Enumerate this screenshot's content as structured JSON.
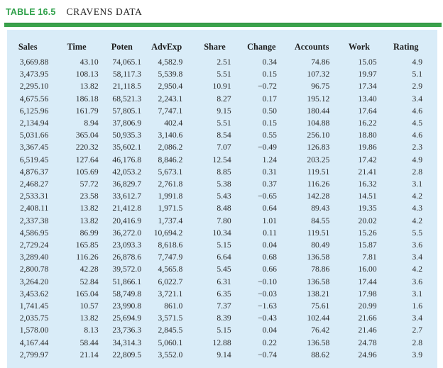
{
  "header": {
    "table_number": "TABLE 16.5",
    "table_name": "CRAVENS DATA"
  },
  "colors": {
    "accent_green": "#3aa24b",
    "title_green": "#2fa04a",
    "panel_blue": "#d9ecf8",
    "text": "#232323"
  },
  "table": {
    "columns": [
      "Sales",
      "Time",
      "Poten",
      "AdvExp",
      "Share",
      "Change",
      "Accounts",
      "Work",
      "Rating"
    ],
    "rows": [
      [
        "3,669.88",
        "43.10",
        "74,065.1",
        "4,582.9",
        "2.51",
        "0.34",
        "74.86",
        "15.05",
        "4.9"
      ],
      [
        "3,473.95",
        "108.13",
        "58,117.3",
        "5,539.8",
        "5.51",
        "0.15",
        "107.32",
        "19.97",
        "5.1"
      ],
      [
        "2,295.10",
        "13.82",
        "21,118.5",
        "2,950.4",
        "10.91",
        "−0.72",
        "96.75",
        "17.34",
        "2.9"
      ],
      [
        "4,675.56",
        "186.18",
        "68,521.3",
        "2,243.1",
        "8.27",
        "0.17",
        "195.12",
        "13.40",
        "3.4"
      ],
      [
        "6,125.96",
        "161.79",
        "57,805.1",
        "7,747.1",
        "9.15",
        "0.50",
        "180.44",
        "17.64",
        "4.6"
      ],
      [
        "2,134.94",
        "8.94",
        "37,806.9",
        "402.4",
        "5.51",
        "0.15",
        "104.88",
        "16.22",
        "4.5"
      ],
      [
        "5,031.66",
        "365.04",
        "50,935.3",
        "3,140.6",
        "8.54",
        "0.55",
        "256.10",
        "18.80",
        "4.6"
      ],
      [
        "3,367.45",
        "220.32",
        "35,602.1",
        "2,086.2",
        "7.07",
        "−0.49",
        "126.83",
        "19.86",
        "2.3"
      ],
      [
        "6,519.45",
        "127.64",
        "46,176.8",
        "8,846.2",
        "12.54",
        "1.24",
        "203.25",
        "17.42",
        "4.9"
      ],
      [
        "4,876.37",
        "105.69",
        "42,053.2",
        "5,673.1",
        "8.85",
        "0.31",
        "119.51",
        "21.41",
        "2.8"
      ],
      [
        "2,468.27",
        "57.72",
        "36,829.7",
        "2,761.8",
        "5.38",
        "0.37",
        "116.26",
        "16.32",
        "3.1"
      ],
      [
        "2,533.31",
        "23.58",
        "33,612.7",
        "1,991.8",
        "5.43",
        "−0.65",
        "142.28",
        "14.51",
        "4.2"
      ],
      [
        "2,408.11",
        "13.82",
        "21,412.8",
        "1,971.5",
        "8.48",
        "0.64",
        "89.43",
        "19.35",
        "4.3"
      ],
      [
        "2,337.38",
        "13.82",
        "20,416.9",
        "1,737.4",
        "7.80",
        "1.01",
        "84.55",
        "20.02",
        "4.2"
      ],
      [
        "4,586.95",
        "86.99",
        "36,272.0",
        "10,694.2",
        "10.34",
        "0.11",
        "119.51",
        "15.26",
        "5.5"
      ],
      [
        "2,729.24",
        "165.85",
        "23,093.3",
        "8,618.6",
        "5.15",
        "0.04",
        "80.49",
        "15.87",
        "3.6"
      ],
      [
        "3,289.40",
        "116.26",
        "26,878.6",
        "7,747.9",
        "6.64",
        "0.68",
        "136.58",
        "7.81",
        "3.4"
      ],
      [
        "2,800.78",
        "42.28",
        "39,572.0",
        "4,565.8",
        "5.45",
        "0.66",
        "78.86",
        "16.00",
        "4.2"
      ],
      [
        "3,264.20",
        "52.84",
        "51,866.1",
        "6,022.7",
        "6.31",
        "−0.10",
        "136.58",
        "17.44",
        "3.6"
      ],
      [
        "3,453.62",
        "165.04",
        "58,749.8",
        "3,721.1",
        "6.35",
        "−0.03",
        "138.21",
        "17.98",
        "3.1"
      ],
      [
        "1,741.45",
        "10.57",
        "23,990.8",
        "861.0",
        "7.37",
        "−1.63",
        "75.61",
        "20.99",
        "1.6"
      ],
      [
        "2,035.75",
        "13.82",
        "25,694.9",
        "3,571.5",
        "8.39",
        "−0.43",
        "102.44",
        "21.66",
        "3.4"
      ],
      [
        "1,578.00",
        "8.13",
        "23,736.3",
        "2,845.5",
        "5.15",
        "0.04",
        "76.42",
        "21.46",
        "2.7"
      ],
      [
        "4,167.44",
        "58.44",
        "34,314.3",
        "5,060.1",
        "12.88",
        "0.22",
        "136.58",
        "24.78",
        "2.8"
      ],
      [
        "2,799.97",
        "21.14",
        "22,809.5",
        "3,552.0",
        "9.14",
        "−0.74",
        "88.62",
        "24.96",
        "3.9"
      ]
    ]
  }
}
